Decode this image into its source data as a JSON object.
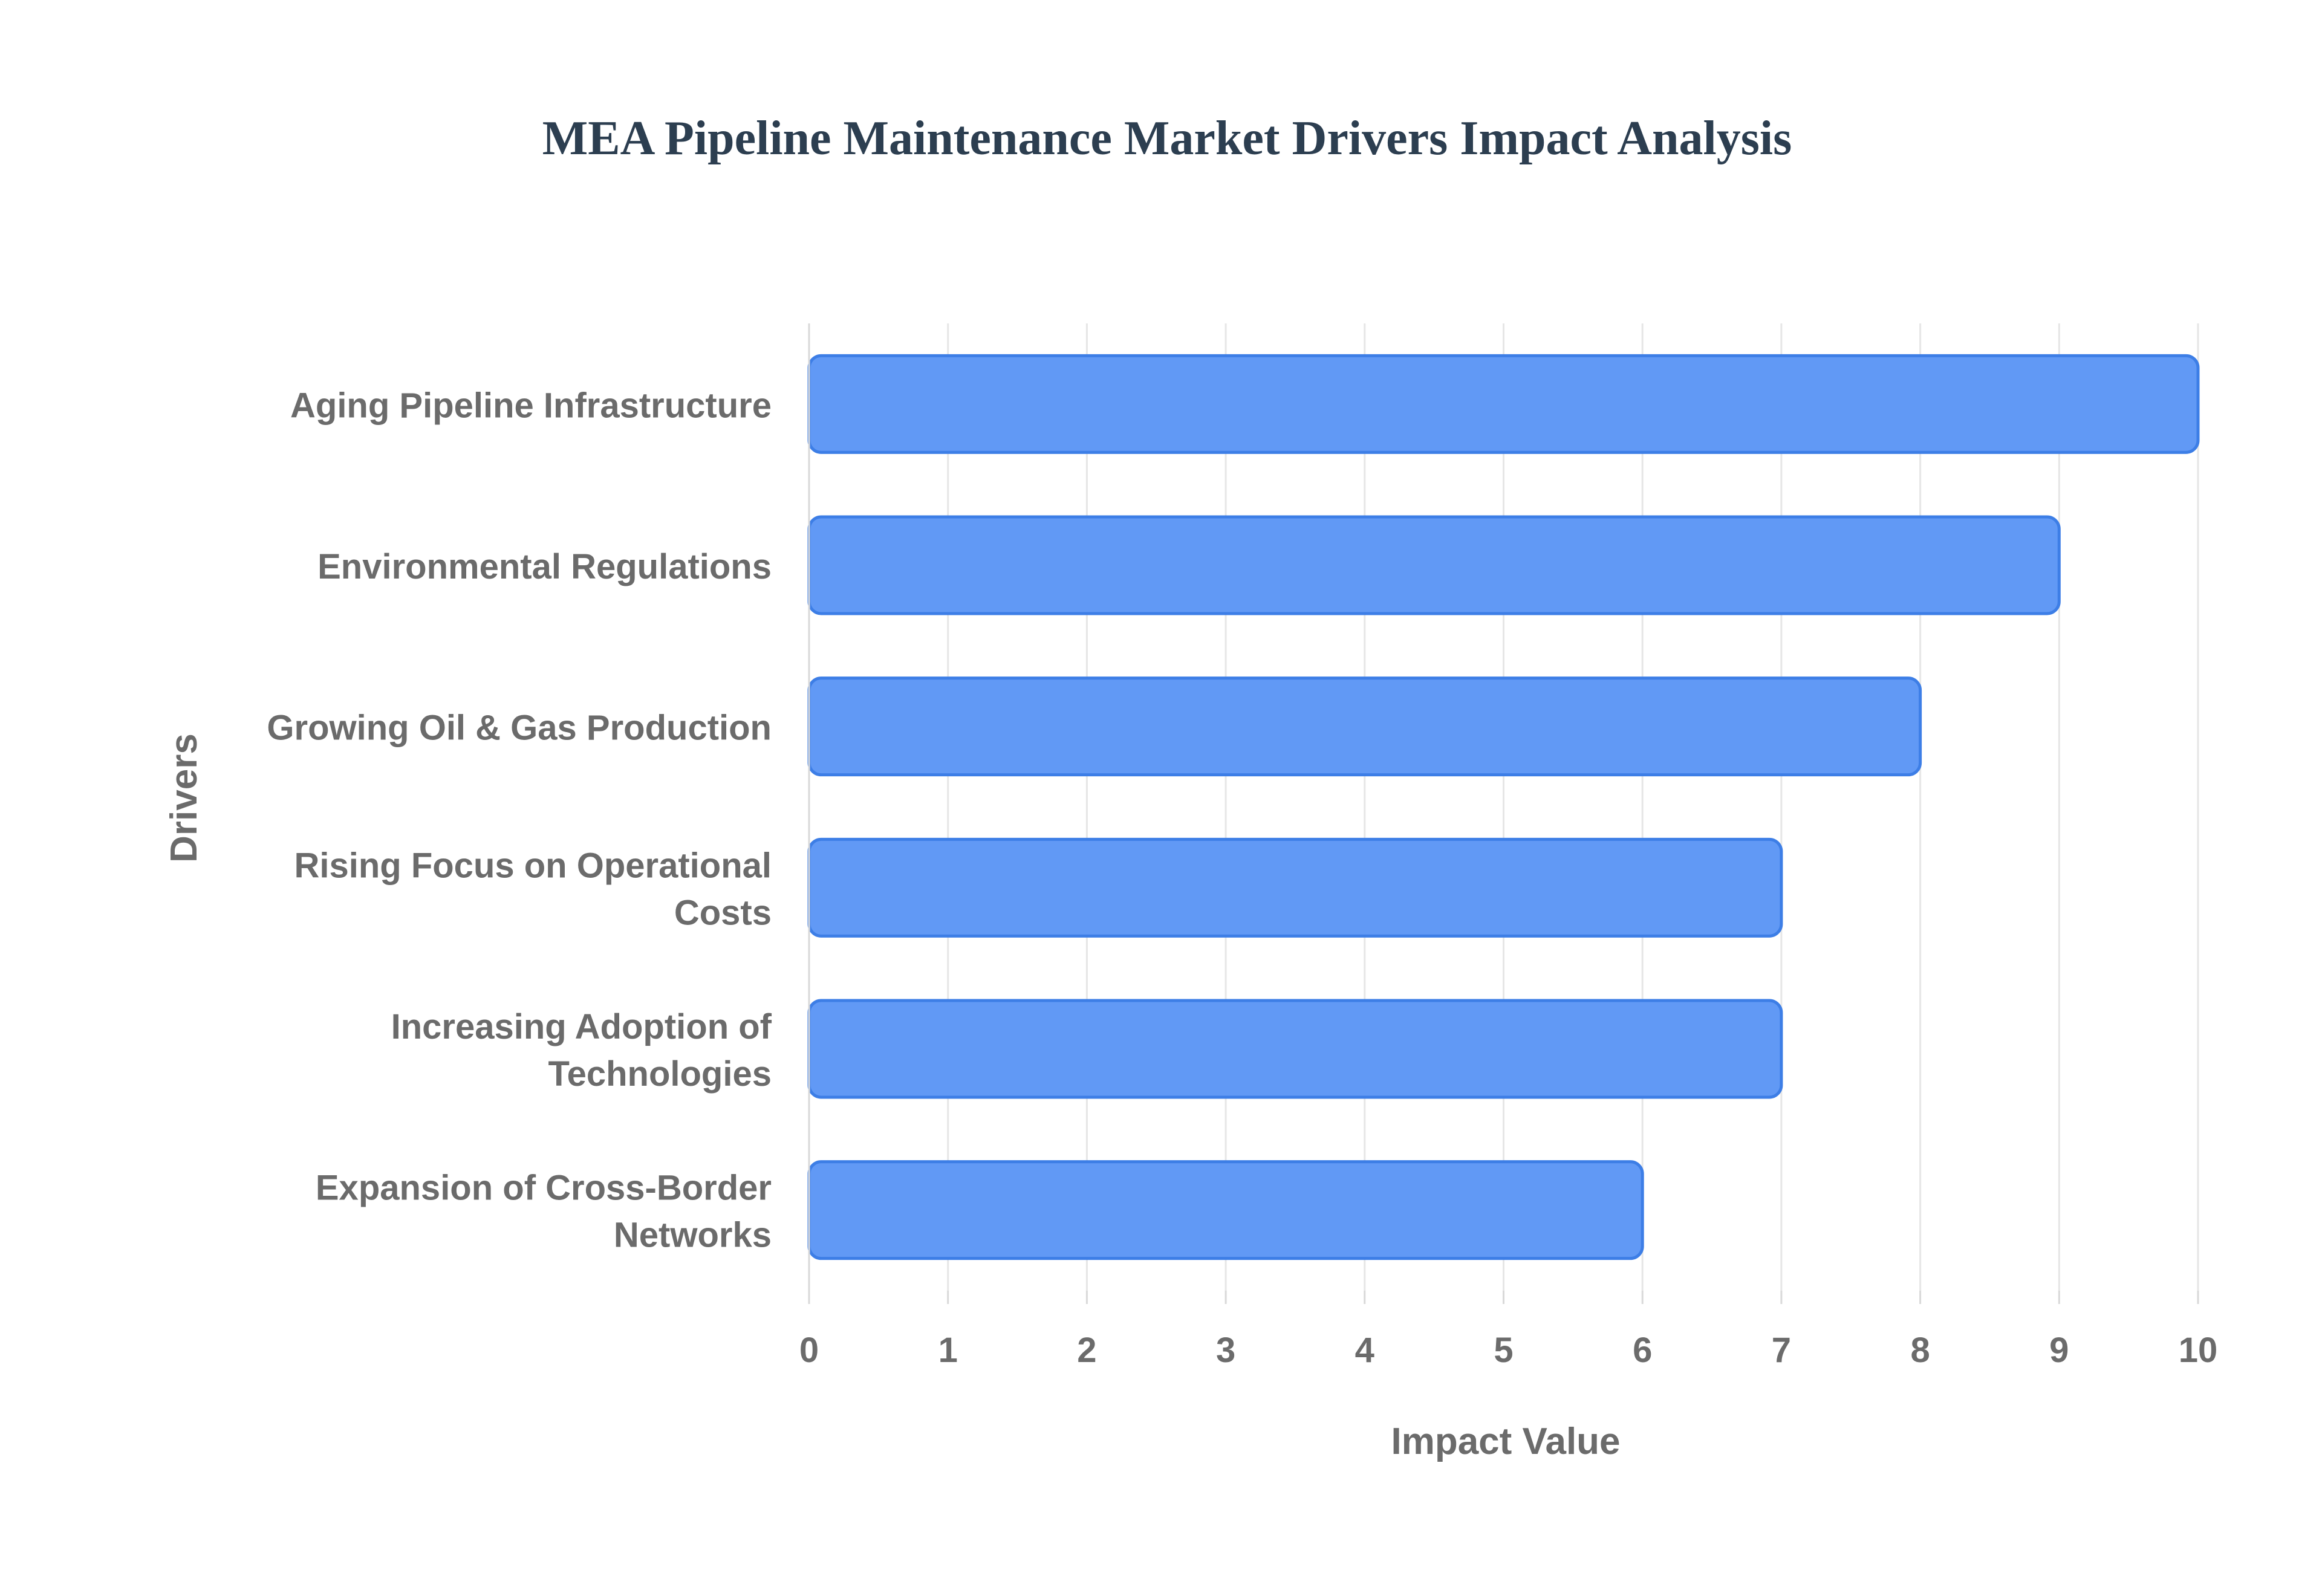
{
  "chart_data": {
    "type": "bar",
    "orientation": "horizontal",
    "title": "MEA Pipeline Maintenance Market Drivers Impact Analysis",
    "xlabel": "Impact Value",
    "ylabel": "Drivers",
    "xlim": [
      0,
      10
    ],
    "x_ticks": [
      "0",
      "1",
      "2",
      "3",
      "4",
      "5",
      "6",
      "7",
      "8",
      "9",
      "10"
    ],
    "grid": true,
    "legend": "none",
    "categories": [
      [
        "Aging Pipeline Infrastructure"
      ],
      [
        "Environmental Regulations"
      ],
      [
        "Growing Oil & Gas Production"
      ],
      [
        "Rising Focus on Operational",
        "Costs"
      ],
      [
        "Increasing Adoption of",
        "Technologies"
      ],
      [
        "Expansion of Cross-Border",
        "Networks"
      ]
    ],
    "values": [
      10,
      9,
      8,
      7,
      7,
      6
    ],
    "colors": {
      "bar_fill": "#6199f5",
      "bar_stroke": "#3d7ee6",
      "title": "#2c3e50",
      "label": "#6b6b6b",
      "grid": "#e6e6e6"
    }
  }
}
